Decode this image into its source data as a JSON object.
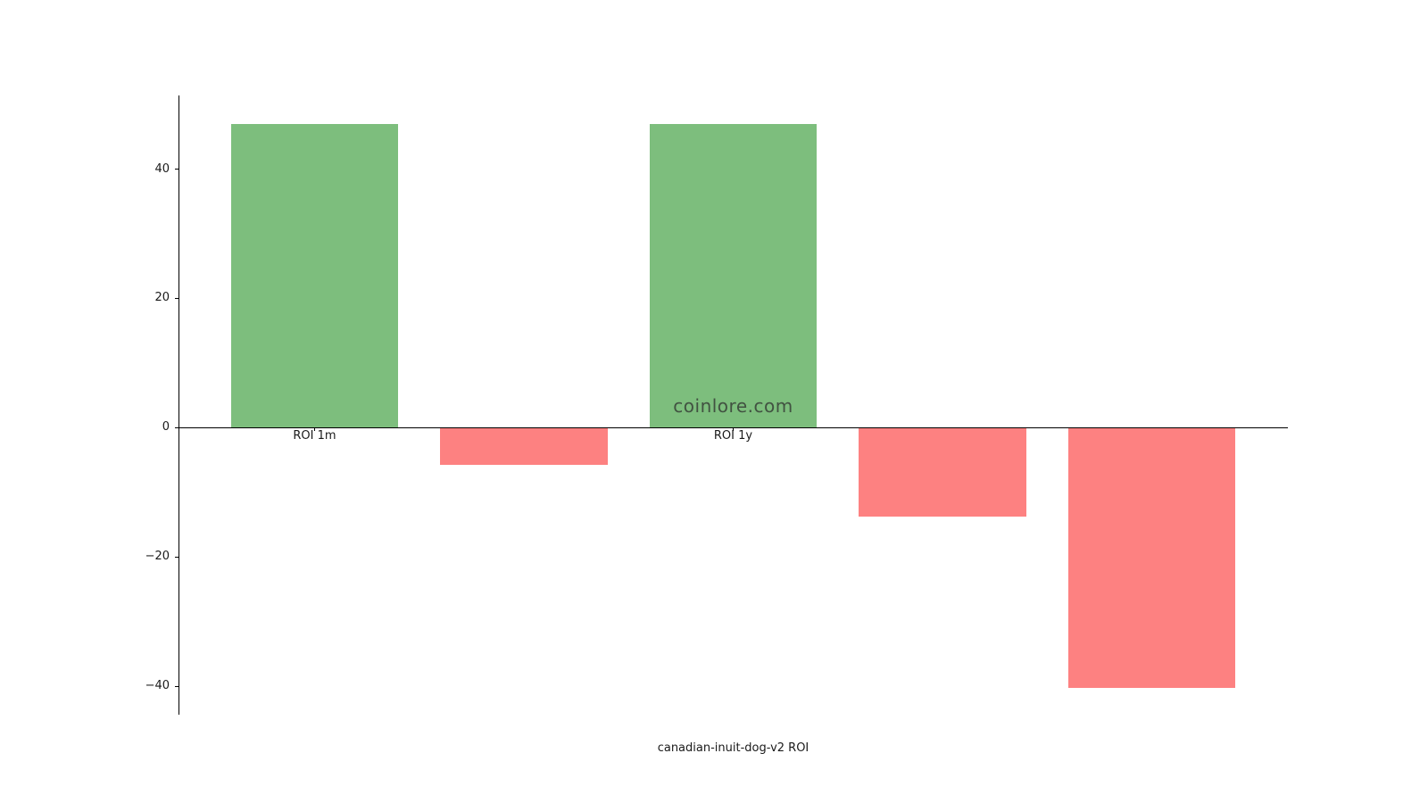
{
  "figure": {
    "background": "#ffffff"
  },
  "chart_data": {
    "type": "bar",
    "title": "canadian-inuit-dog-v2 ROI",
    "watermark": "coinlore.com",
    "x": [
      0,
      1,
      2,
      3,
      4
    ],
    "values": [
      47,
      -5.8,
      47,
      -13.8,
      -40.2
    ],
    "bar_width": 0.8,
    "xticks": [
      {
        "pos": 0,
        "label": "ROI 1m"
      },
      {
        "pos": 2,
        "label": "ROI 1y"
      }
    ],
    "yticks": [
      40,
      20,
      0,
      -20,
      -40
    ],
    "xlim": [
      -0.65,
      4.65
    ],
    "ylim": [
      -44.4,
      51.4
    ],
    "grid": false,
    "legend": null,
    "colors": {
      "positive": "#7dbe7d",
      "negative": "#fd8181",
      "axis": "#000000",
      "tick_label": "#1a1a1a",
      "title": "#1a1a1a",
      "watermark": "rgba(45,45,45,0.75)"
    }
  }
}
